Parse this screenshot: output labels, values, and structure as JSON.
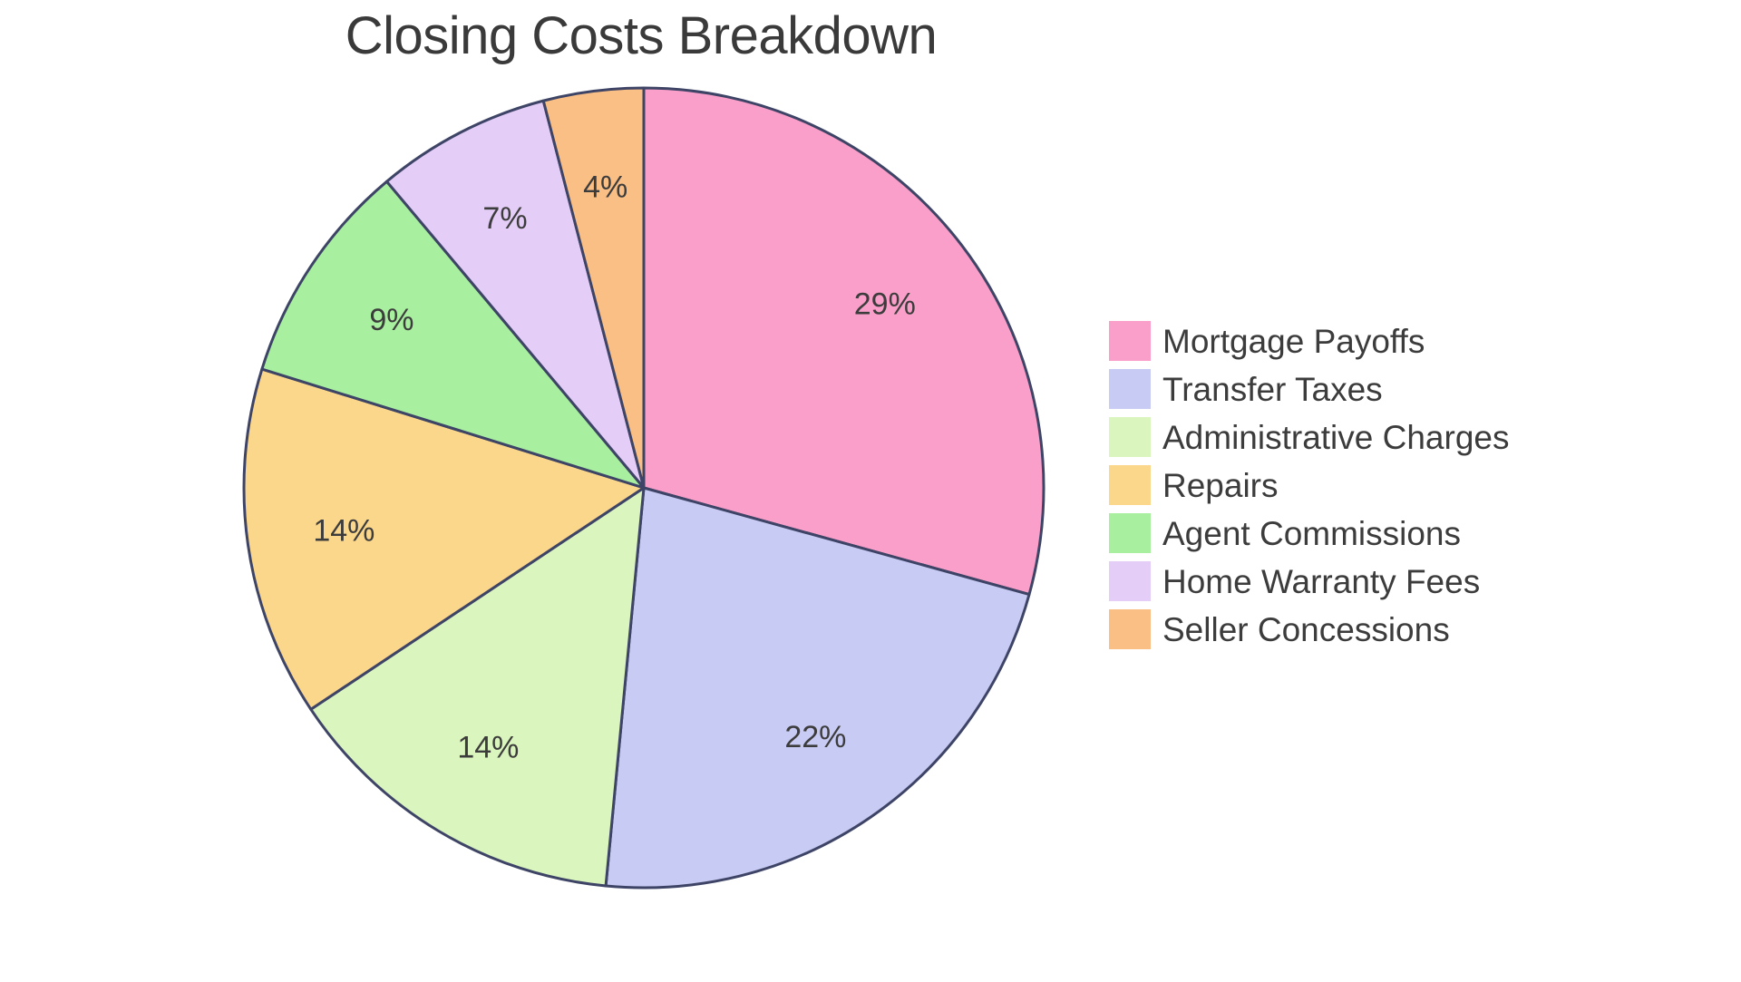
{
  "chart_data": {
    "type": "pie",
    "title": "Closing Costs Breakdown",
    "legend_position": "right",
    "direction": "clockwise",
    "start_angle": "12-oclock",
    "stroke_color": "#3E4466",
    "text_color": "#3C3C3C",
    "title_color": "#3A3A3A",
    "background_color": "#FFFFFF",
    "segments": [
      {
        "label": "Mortgage Payoffs",
        "value": 29,
        "display": "29%",
        "color": "#FA9FC9"
      },
      {
        "label": "Transfer Taxes",
        "value": 22,
        "display": "22%",
        "color": "#C8CBF3"
      },
      {
        "label": "Administrative Charges",
        "value": 14,
        "display": "14%",
        "color": "#DBF5BE"
      },
      {
        "label": "Repairs",
        "value": 14,
        "display": "14%",
        "color": "#FBD78C"
      },
      {
        "label": "Agent Commissions",
        "value": 9,
        "display": "9%",
        "color": "#A9EFA0"
      },
      {
        "label": "Home Warranty Fees",
        "value": 7,
        "display": "7%",
        "color": "#E4CDF7"
      },
      {
        "label": "Seller Concessions",
        "value": 4,
        "display": "4%",
        "color": "#FABF85"
      }
    ]
  }
}
